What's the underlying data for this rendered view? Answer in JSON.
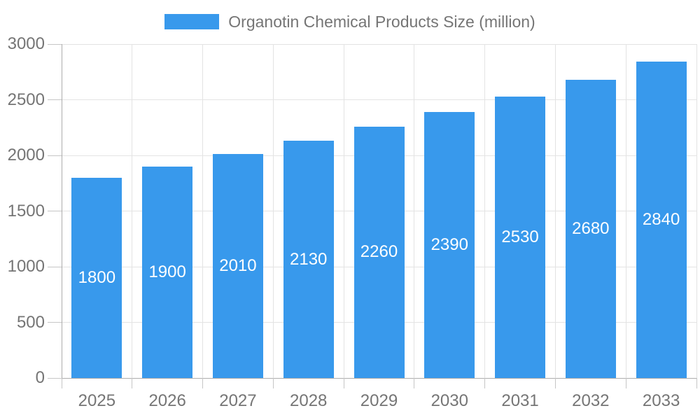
{
  "chart_data": {
    "type": "bar",
    "title": "Organotin Chemical Products Size (million)",
    "legend_position": "top",
    "categories": [
      "2025",
      "2026",
      "2027",
      "2028",
      "2029",
      "2030",
      "2031",
      "2032",
      "2033"
    ],
    "series": [
      {
        "name": "Organotin Chemical Products Size (million)",
        "values": [
          1800,
          1900,
          2010,
          2130,
          2260,
          2390,
          2530,
          2680,
          2840
        ]
      }
    ],
    "bar_labels": [
      "1800",
      "1900",
      "2010",
      "2130",
      "2260",
      "2390",
      "2530",
      "2680",
      "2840"
    ],
    "xlabel": "",
    "ylabel": "",
    "ylim": [
      0,
      3000
    ],
    "yticks": [
      0,
      500,
      1000,
      1500,
      2000,
      2500,
      3000
    ],
    "ytick_labels": [
      "0",
      "500",
      "1000",
      "1500",
      "2000",
      "2500",
      "3000"
    ],
    "grid": true,
    "colors": {
      "bar": "#3899EC",
      "bar_label": "#FFFFFF",
      "axis_text": "#757575",
      "axis_line": "#ADADAD",
      "tick_line": "#C6C6C6",
      "grid_line": "#E3E3E3",
      "background": "#FFFFFF"
    }
  }
}
